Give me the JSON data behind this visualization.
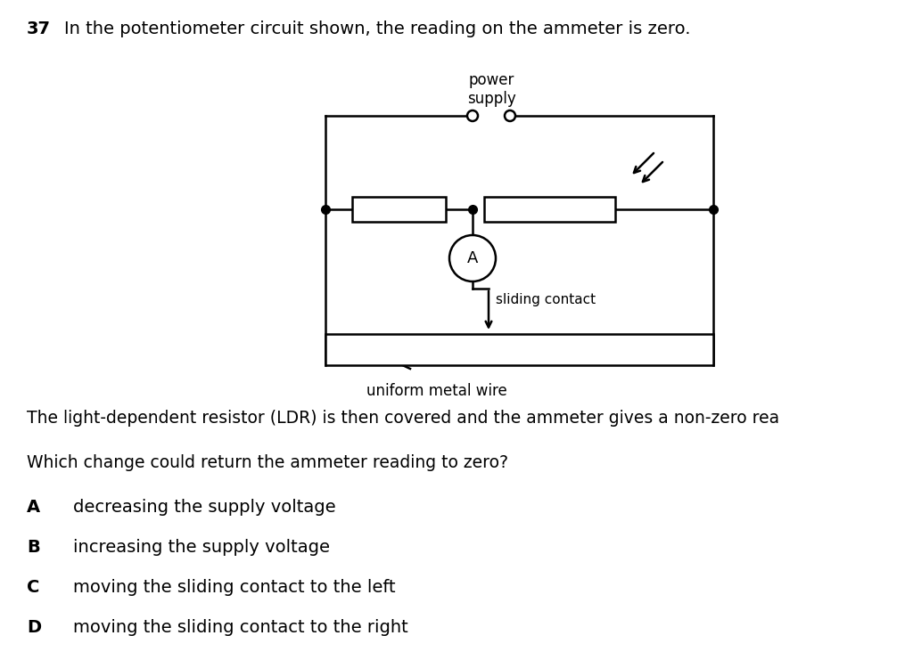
{
  "title_number": "37",
  "title_text": "In the potentiometer circuit shown, the reading on the ammeter is zero.",
  "power_supply_label": "power\nsupply",
  "sliding_contact_label": "sliding contact",
  "uniform_metal_wire_label": "uniform metal wire",
  "ammeter_label": "A",
  "paragraph_text": "The light-dependent resistor (LDR) is then covered and the ammeter gives a non-zero rea",
  "question_text": "Which change could return the ammeter reading to zero?",
  "options": [
    [
      "A",
      "decreasing the supply voltage"
    ],
    [
      "B",
      "increasing the supply voltage"
    ],
    [
      "C",
      "moving the sliding contact to the left"
    ],
    [
      "D",
      "moving the sliding contact to the right"
    ]
  ],
  "background_color": "#ffffff",
  "line_color": "#000000",
  "font_color": "#000000"
}
